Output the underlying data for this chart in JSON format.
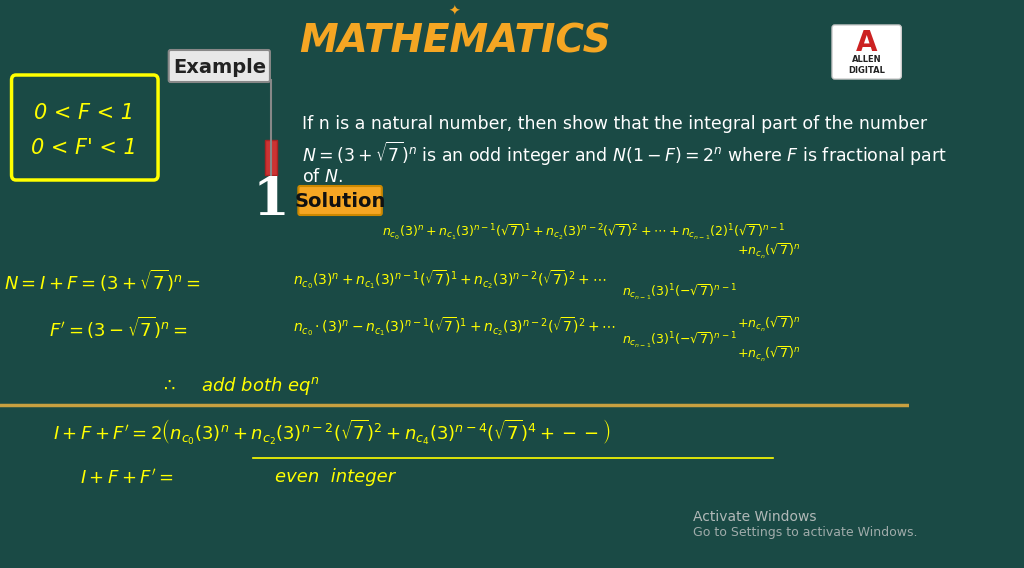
{
  "bg_color": "#1a4a45",
  "title": "MATHEMATICS",
  "title_color": "#f5a623",
  "title_fontsize": 28,
  "example_label": "Example",
  "example_bg": "#e8e8e8",
  "example_fontsize": 14,
  "solution_label": "Solution",
  "solution_bg": "#f5a623",
  "solution_fontsize": 14,
  "problem_text_color": "#ffffff",
  "handwriting_color": "#ffff00",
  "box_color": "#ffff00",
  "line_color": "#c8a040",
  "activate_windows_color": "#cccccc",
  "problem_line1": "If n is a natural number, then show that the integral part of the number",
  "problem_line2": "N = (3 + √7)ⁿ is an odd integer and N(1 − F)  = 2ⁿ where F is fractional part",
  "problem_line3": "of N.",
  "note_line1": "0 < F < 1",
  "note_line2": "0 < F' < 1"
}
